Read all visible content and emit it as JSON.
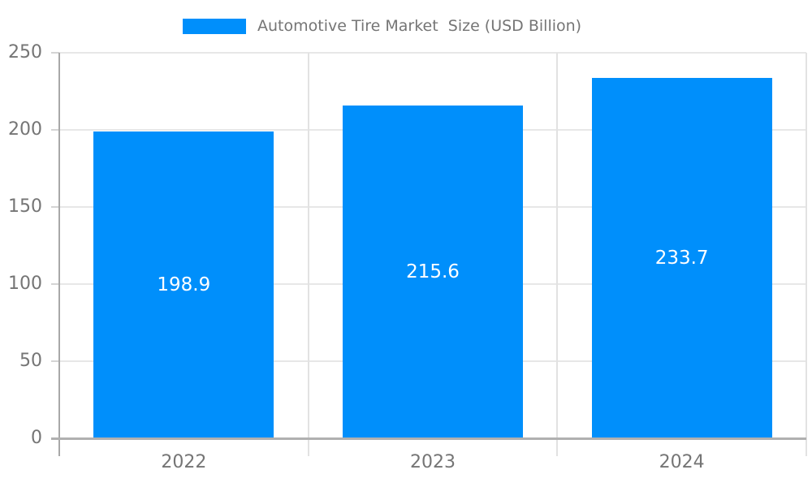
{
  "chart_data": {
    "type": "bar",
    "title": "Automotive Tire Market  Size (USD Billion)",
    "categories": [
      "2022",
      "2023",
      "2024"
    ],
    "series": [
      {
        "name": "Automotive Tire Market  Size (USD Billion)",
        "values": [
          198.9,
          215.6,
          233.7
        ]
      }
    ],
    "value_labels": [
      "198.9",
      "215.6",
      "233.7"
    ],
    "xlabel": "",
    "ylabel": "",
    "ylim": [
      0,
      250
    ],
    "yticks": [
      0,
      50,
      100,
      150,
      200,
      250
    ],
    "ytick_labels": [
      "0",
      "50",
      "100",
      "150",
      "200",
      "250"
    ],
    "grid": true,
    "legend_position": "top-center"
  },
  "colors": {
    "bar": "#008FFB",
    "value_label": "#ffffff",
    "tick_label": "#757575",
    "title_text": "#757575",
    "gridline": "#e7e7e7",
    "boundary_line": "#e2e2e2",
    "tick_stub": "#d4d4d4",
    "axis_line": "#a8a8a8",
    "x_axis_line": "#b0b0b0",
    "background": "#ffffff"
  }
}
